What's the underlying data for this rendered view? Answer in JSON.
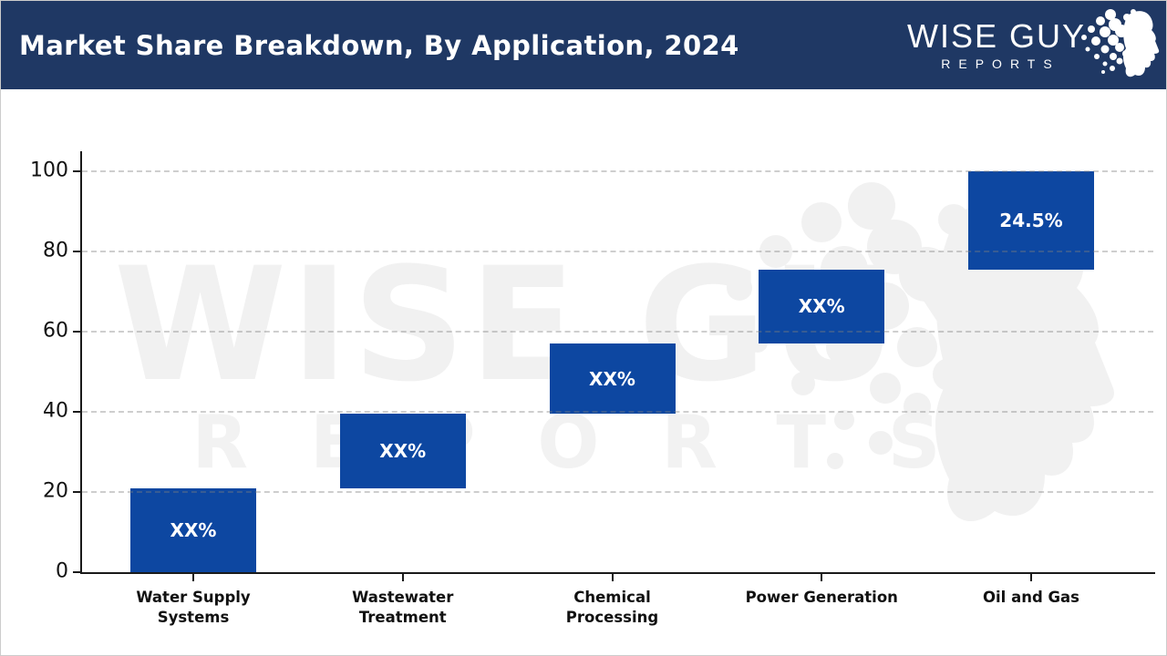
{
  "header": {
    "title": "Market Share Breakdown, By Application, 2024",
    "bg_color": "#1f3864",
    "logo": {
      "line1": "WISE GUY",
      "line2": "REPORTS"
    }
  },
  "watermark": {
    "line1": "WISE GUY",
    "line2": "REPORTS"
  },
  "chart_data": {
    "type": "bar",
    "subtype": "waterfall",
    "title": "Market Share Breakdown, By Application, 2024",
    "categories": [
      "Water Supply Systems",
      "Wastewater Treatment",
      "Chemical Processing",
      "Power Generation",
      "Oil and Gas"
    ],
    "category_label_lines": [
      [
        "Water Supply",
        "Systems"
      ],
      [
        "Wastewater",
        "Treatment"
      ],
      [
        "Chemical",
        "Processing"
      ],
      [
        "Power Generation"
      ],
      [
        "Oil and Gas"
      ]
    ],
    "segments": [
      {
        "category": "Water Supply Systems",
        "start": 0,
        "end": 21,
        "value": 21,
        "label": "XX%"
      },
      {
        "category": "Wastewater Treatment",
        "start": 21,
        "end": 39.5,
        "value": 18.5,
        "label": "XX%"
      },
      {
        "category": "Chemical Processing",
        "start": 39.5,
        "end": 57,
        "value": 17.5,
        "label": "XX%"
      },
      {
        "category": "Power Generation",
        "start": 57,
        "end": 75.5,
        "value": 18.5,
        "label": "XX%"
      },
      {
        "category": "Oil and Gas",
        "start": 75.5,
        "end": 100,
        "value": 24.5,
        "label": "24.5%"
      }
    ],
    "y_ticks": [
      0,
      20,
      40,
      60,
      80,
      100
    ],
    "ylim": [
      0,
      105
    ],
    "grid": "dashed-horizontal",
    "legend": "none",
    "bar_color": "#0d47a1",
    "bar_label_color": "#ffffff",
    "axis_color": "#1a1a1a"
  }
}
